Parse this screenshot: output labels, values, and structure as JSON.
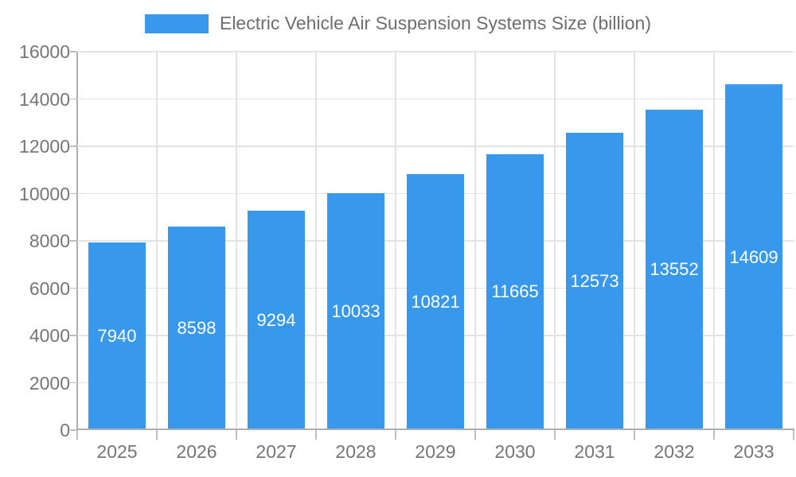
{
  "legend": {
    "series_label": "Electric Vehicle Air Suspension Systems Size (billion)"
  },
  "chart_data": {
    "type": "bar",
    "title": "Electric Vehicle Air Suspension Systems Size (billion)",
    "categories": [
      "2025",
      "2026",
      "2027",
      "2028",
      "2029",
      "2030",
      "2031",
      "2032",
      "2033"
    ],
    "values": [
      7940,
      8598,
      9294,
      10033,
      10821,
      11665,
      12573,
      13552,
      14609
    ],
    "xlabel": "",
    "ylabel": "",
    "ylim": [
      0,
      16000
    ],
    "yticks": [
      0,
      2000,
      4000,
      6000,
      8000,
      10000,
      12000,
      14000,
      16000
    ],
    "grid": true,
    "legend_position": "top",
    "value_labels_position": "inside-center",
    "colors": {
      "bar": "#3899EC",
      "value_label": "#ffffff",
      "axis_text": "#757575",
      "title_text": "#6e6e6e",
      "gridline": "#e3e3e3",
      "axis_line": "#aeaeae",
      "tick": "#bdbdbd",
      "background": "#ffffff"
    }
  }
}
